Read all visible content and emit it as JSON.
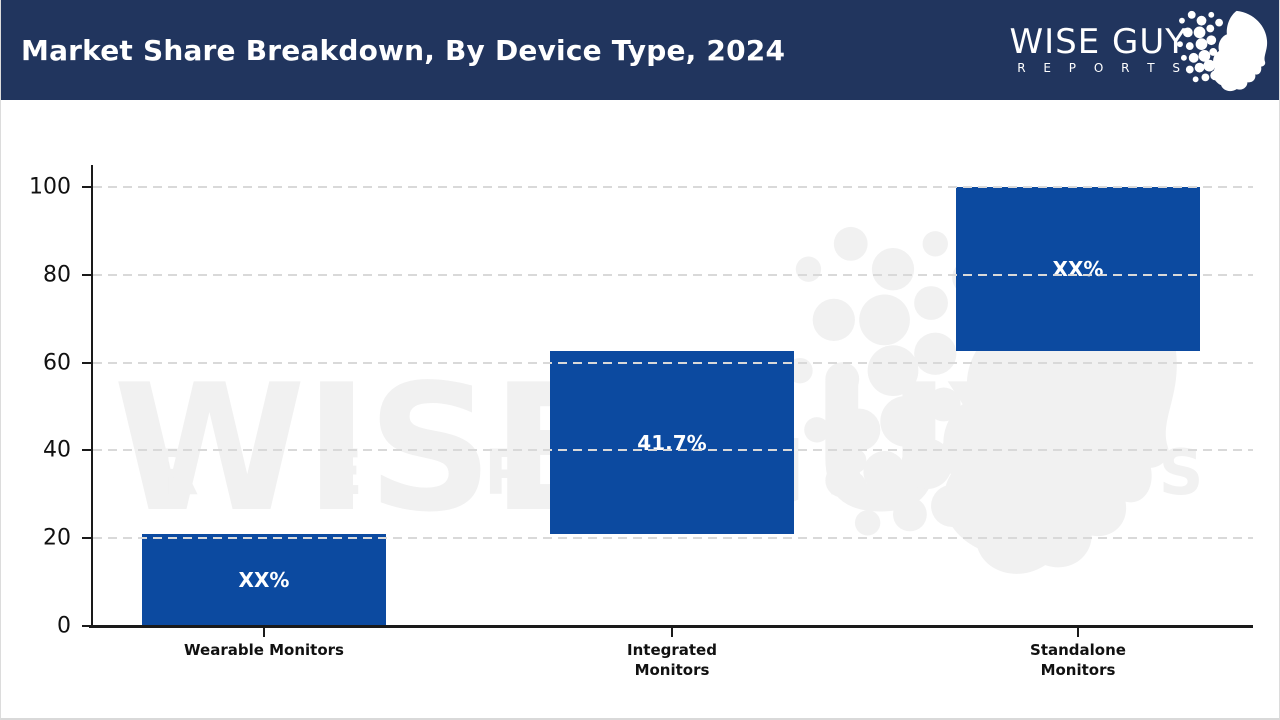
{
  "header": {
    "title": "Market Share Breakdown, By Device Type, 2024",
    "logo": {
      "wordmark": "WISE GUY",
      "subtext": "R E P O R T S"
    }
  },
  "watermark": {
    "wordmark": "WISE GUY",
    "subtext": "R E P O R T S"
  },
  "chart_data": {
    "type": "bar",
    "variant": "waterfall",
    "title": "Market Share Breakdown, By Device Type, 2024",
    "categories": [
      "Wearable Monitors",
      "Integrated\nMonitors",
      "Standalone\nMonitors"
    ],
    "segments": [
      {
        "category": "Wearable Monitors",
        "start": 0,
        "end": 20.9,
        "label": "XX%"
      },
      {
        "category": "Integrated Monitors",
        "start": 20.9,
        "end": 62.6,
        "label": "41.7%"
      },
      {
        "category": "Standalone Monitors",
        "start": 62.6,
        "end": 100,
        "label": "XX%"
      }
    ],
    "yticks": [
      0,
      20,
      40,
      60,
      80,
      100
    ],
    "ylim": [
      0,
      105
    ],
    "xlabel": "",
    "ylabel": "",
    "grid": "horizontal-dashed",
    "legend": false,
    "colors": {
      "bar": "#0c4aa0",
      "header_bg": "#21355e",
      "grid_line": "#d9d9d9",
      "axis": "#1a1a1a",
      "bar_label": "#ffffff",
      "watermark": "#f1f1f1"
    }
  }
}
